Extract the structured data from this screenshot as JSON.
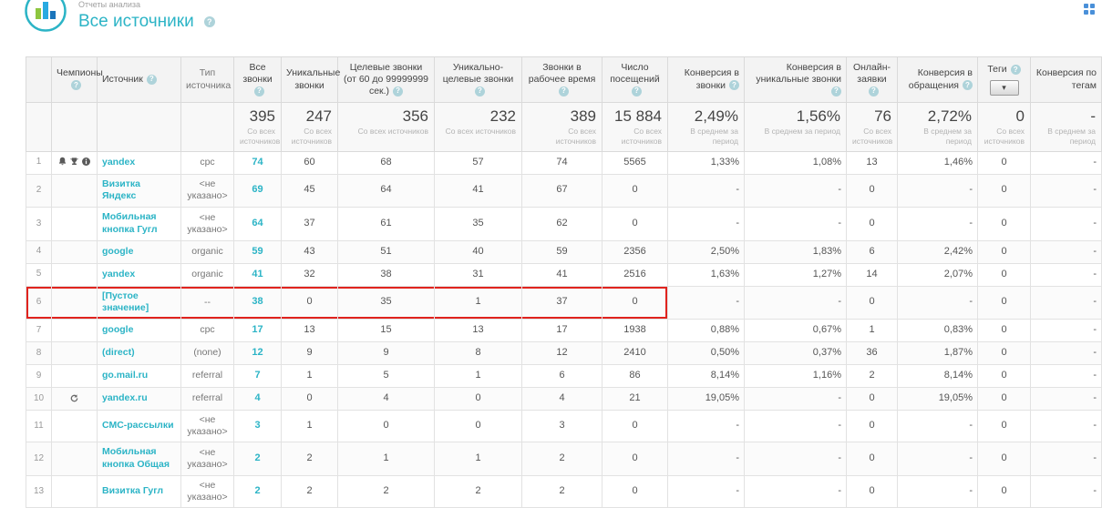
{
  "page": {
    "eyebrow": "Отчеты анализа",
    "title": "Все источники"
  },
  "accent_color": "#2cb4c6",
  "table": {
    "columns": [
      {
        "key": "num",
        "label": "",
        "width": 28,
        "help": false
      },
      {
        "key": "champions",
        "label": "Чемпионы",
        "width": 50,
        "help": true
      },
      {
        "key": "source",
        "label": "Источник",
        "width": 92,
        "help": true
      },
      {
        "key": "type",
        "label": "Тип источника",
        "width": 58,
        "help": false
      },
      {
        "key": "all_calls",
        "label": "Все звонки",
        "width": 52,
        "help": true
      },
      {
        "key": "unique_calls",
        "label": "Уникальные звонки",
        "width": 62,
        "help": false
      },
      {
        "key": "target_calls",
        "label": "Целевые звонки (от 60 до 99999999 сек.)",
        "width": 106,
        "help": true
      },
      {
        "key": "unique_target_calls",
        "label": "Уникально-целевые звонки",
        "width": 96,
        "help": true
      },
      {
        "key": "work_time_calls",
        "label": "Звонки в рабочее время",
        "width": 88,
        "help": true
      },
      {
        "key": "visits",
        "label": "Число посещений",
        "width": 72,
        "help": true
      },
      {
        "key": "conv_calls",
        "label": "Конверсия в звонки",
        "width": 84,
        "help": true
      },
      {
        "key": "conv_unique_calls",
        "label": "Конверсия в уникальные звонки",
        "width": 112,
        "help": true
      },
      {
        "key": "online_leads",
        "label": "Онлайн-заявки",
        "width": 56,
        "help": true
      },
      {
        "key": "conv_leads",
        "label": "Конверсия в обращения",
        "width": 88,
        "help": true
      },
      {
        "key": "tags",
        "label": "Теги",
        "width": 58,
        "help": true,
        "dropdown": true
      },
      {
        "key": "conv_tags",
        "label": "Конверсия по тегам",
        "width": 78,
        "help": false
      }
    ],
    "summary": {
      "all_calls": {
        "value": "395",
        "caption": "Со всех источников"
      },
      "unique_calls": {
        "value": "247",
        "caption": "Со всех источников"
      },
      "target_calls": {
        "value": "356",
        "caption": "Со всех источников"
      },
      "unique_target_calls": {
        "value": "232",
        "caption": "Со всех источников"
      },
      "work_time_calls": {
        "value": "389",
        "caption": "Со всех источников"
      },
      "visits": {
        "value": "15 884",
        "caption": "Со всех источников"
      },
      "conv_calls": {
        "value": "2,49%",
        "caption": "В среднем за период"
      },
      "conv_unique_calls": {
        "value": "1,56%",
        "caption": "В среднем за период"
      },
      "online_leads": {
        "value": "76",
        "caption": "Со всех источников"
      },
      "conv_leads": {
        "value": "2,72%",
        "caption": "В среднем за период"
      },
      "tags": {
        "value": "0",
        "caption": "Со всех источников"
      },
      "conv_tags": {
        "value": "-",
        "caption": "В среднем за период"
      }
    },
    "rows": [
      {
        "num": "1",
        "champions": [
          "bell-icon",
          "trophy-icon",
          "info-icon"
        ],
        "source": "yandex",
        "type": "cpc",
        "all_calls": "74",
        "unique_calls": "60",
        "target_calls": "68",
        "unique_target_calls": "57",
        "work_time_calls": "74",
        "visits": "5565",
        "conv_calls": "1,33%",
        "conv_unique_calls": "1,08%",
        "online_leads": "13",
        "conv_leads": "1,46%",
        "tags": "0",
        "conv_tags": "-"
      },
      {
        "num": "2",
        "champions": [],
        "source": "Визитка Яндекс",
        "type": "<не указано>",
        "all_calls": "69",
        "unique_calls": "45",
        "target_calls": "64",
        "unique_target_calls": "41",
        "work_time_calls": "67",
        "visits": "0",
        "conv_calls": "-",
        "conv_unique_calls": "-",
        "online_leads": "0",
        "conv_leads": "-",
        "tags": "0",
        "conv_tags": "-"
      },
      {
        "num": "3",
        "champions": [],
        "source": "Мобильная кнопка Гугл",
        "type": "<не указано>",
        "all_calls": "64",
        "unique_calls": "37",
        "target_calls": "61",
        "unique_target_calls": "35",
        "work_time_calls": "62",
        "visits": "0",
        "conv_calls": "-",
        "conv_unique_calls": "-",
        "online_leads": "0",
        "conv_leads": "-",
        "tags": "0",
        "conv_tags": "-"
      },
      {
        "num": "4",
        "champions": [],
        "source": "google",
        "type": "organic",
        "all_calls": "59",
        "unique_calls": "43",
        "target_calls": "51",
        "unique_target_calls": "40",
        "work_time_calls": "59",
        "visits": "2356",
        "conv_calls": "2,50%",
        "conv_unique_calls": "1,83%",
        "online_leads": "6",
        "conv_leads": "2,42%",
        "tags": "0",
        "conv_tags": "-"
      },
      {
        "num": "5",
        "champions": [],
        "source": "yandex",
        "type": "organic",
        "all_calls": "41",
        "unique_calls": "32",
        "target_calls": "38",
        "unique_target_calls": "31",
        "work_time_calls": "41",
        "visits": "2516",
        "conv_calls": "1,63%",
        "conv_unique_calls": "1,27%",
        "online_leads": "14",
        "conv_leads": "2,07%",
        "tags": "0",
        "conv_tags": "-"
      },
      {
        "num": "6",
        "champions": [],
        "source": "[Пустое значение]",
        "type": "--",
        "all_calls": "38",
        "unique_calls": "0",
        "target_calls": "35",
        "unique_target_calls": "1",
        "work_time_calls": "37",
        "visits": "0",
        "conv_calls": "-",
        "conv_unique_calls": "-",
        "online_leads": "0",
        "conv_leads": "-",
        "tags": "0",
        "conv_tags": "-"
      },
      {
        "num": "7",
        "champions": [],
        "source": "google",
        "type": "cpc",
        "all_calls": "17",
        "unique_calls": "13",
        "target_calls": "15",
        "unique_target_calls": "13",
        "work_time_calls": "17",
        "visits": "1938",
        "conv_calls": "0,88%",
        "conv_unique_calls": "0,67%",
        "online_leads": "1",
        "conv_leads": "0,83%",
        "tags": "0",
        "conv_tags": "-"
      },
      {
        "num": "8",
        "champions": [],
        "source": "(direct)",
        "type": "(none)",
        "all_calls": "12",
        "unique_calls": "9",
        "target_calls": "9",
        "unique_target_calls": "8",
        "work_time_calls": "12",
        "visits": "2410",
        "conv_calls": "0,50%",
        "conv_unique_calls": "0,37%",
        "online_leads": "36",
        "conv_leads": "1,87%",
        "tags": "0",
        "conv_tags": "-"
      },
      {
        "num": "9",
        "champions": [],
        "source": "go.mail.ru",
        "type": "referral",
        "all_calls": "7",
        "unique_calls": "1",
        "target_calls": "5",
        "unique_target_calls": "1",
        "work_time_calls": "6",
        "visits": "86",
        "conv_calls": "8,14%",
        "conv_unique_calls": "1,16%",
        "online_leads": "2",
        "conv_leads": "8,14%",
        "tags": "0",
        "conv_tags": "-"
      },
      {
        "num": "10",
        "champions": [
          "refresh-icon"
        ],
        "source": "yandex.ru",
        "type": "referral",
        "all_calls": "4",
        "unique_calls": "0",
        "target_calls": "4",
        "unique_target_calls": "0",
        "work_time_calls": "4",
        "visits": "21",
        "conv_calls": "19,05%",
        "conv_unique_calls": "-",
        "online_leads": "0",
        "conv_leads": "19,05%",
        "tags": "0",
        "conv_tags": "-"
      },
      {
        "num": "11",
        "champions": [],
        "source": "СМС-рассылки",
        "type": "<не указано>",
        "all_calls": "3",
        "unique_calls": "1",
        "target_calls": "0",
        "unique_target_calls": "0",
        "work_time_calls": "3",
        "visits": "0",
        "conv_calls": "-",
        "conv_unique_calls": "-",
        "online_leads": "0",
        "conv_leads": "-",
        "tags": "0",
        "conv_tags": "-"
      },
      {
        "num": "12",
        "champions": [],
        "source": "Мобильная кнопка Общая",
        "type": "<не указано>",
        "all_calls": "2",
        "unique_calls": "2",
        "target_calls": "1",
        "unique_target_calls": "1",
        "work_time_calls": "2",
        "visits": "0",
        "conv_calls": "-",
        "conv_unique_calls": "-",
        "online_leads": "0",
        "conv_leads": "-",
        "tags": "0",
        "conv_tags": "-"
      },
      {
        "num": "13",
        "champions": [],
        "source": "Визитка Гугл",
        "type": "<не указано>",
        "all_calls": "2",
        "unique_calls": "2",
        "target_calls": "2",
        "unique_target_calls": "2",
        "work_time_calls": "2",
        "visits": "0",
        "conv_calls": "-",
        "conv_unique_calls": "-",
        "online_leads": "0",
        "conv_leads": "-",
        "tags": "0",
        "conv_tags": "-"
      }
    ],
    "highlight": {
      "row_index": 5,
      "from_col": 0,
      "to_col": 9,
      "color": "#e0231e"
    }
  }
}
